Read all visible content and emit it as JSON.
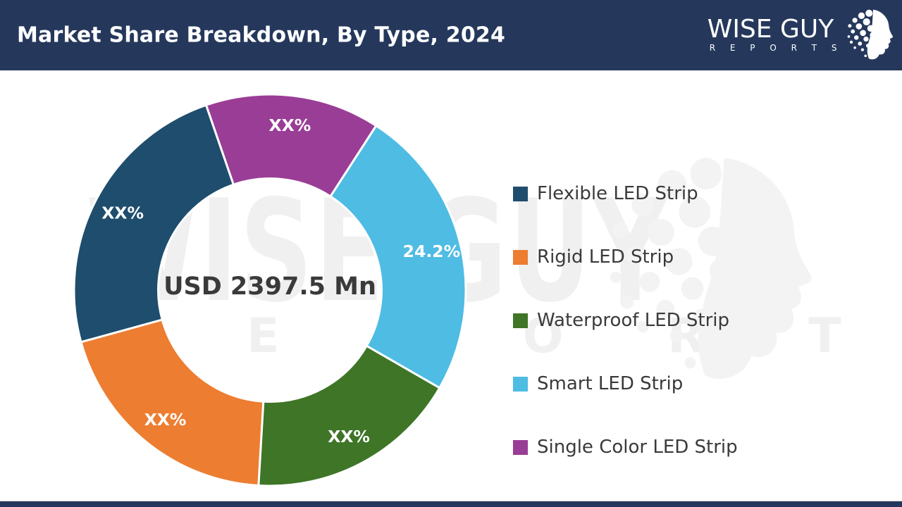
{
  "header": {
    "title": "Market Share Breakdown, By Type, 2024",
    "logo": {
      "wordmark": "WISE GUY",
      "subtext": "R E P O R T S"
    }
  },
  "watermark": {
    "big_text": "WISE GUY",
    "small_text": "R E P O R T S"
  },
  "theme": {
    "header_bg": "#25385C",
    "footer_bg": "#25385C",
    "page_bg": "#FFFFFF",
    "title_color": "#FFFFFF",
    "text_color": "#3A3A3A",
    "slice_label_color": "#FFFFFF",
    "watermark_color": "#F0F0F0",
    "slice_divider_color": "#FFFFFF"
  },
  "chart_data": {
    "type": "pie",
    "subtype": "donut",
    "title": "Market Share Breakdown, By Type, 2024",
    "center_total": "USD 2397.5 Mn",
    "legend_position": "right",
    "start_angle_deg": 109,
    "direction": "counterclockwise",
    "inner_radius_ratio": 0.57,
    "segments": [
      {
        "label": "Flexible LED Strip",
        "display_label": "XX%",
        "value_pct": 24.0,
        "color": "#1F4D6D"
      },
      {
        "label": "Rigid LED Strip",
        "display_label": "XX%",
        "value_pct": 19.8,
        "color": "#ED7D31"
      },
      {
        "label": "Waterproof LED Strip",
        "display_label": "XX%",
        "value_pct": 17.6,
        "color": "#3E7527"
      },
      {
        "label": "Smart LED Strip",
        "display_label": "24.2%",
        "value_pct": 24.2,
        "color": "#4FBCE4"
      },
      {
        "label": "Single Color LED Strip",
        "display_label": "XX%",
        "value_pct": 14.4,
        "color": "#9A3D96"
      }
    ]
  }
}
